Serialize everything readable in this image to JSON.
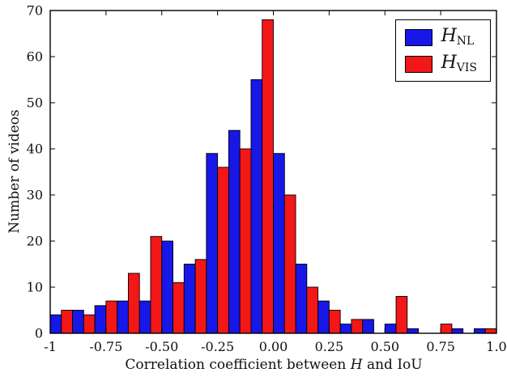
{
  "figure": {
    "background": "#ffffff",
    "ylabel": "Number of videos",
    "xlabel": {
      "prefix": "Correlation coefficient between ",
      "var": "H",
      "suffix": " and IoU"
    },
    "legend": [
      {
        "main": "H",
        "sub": "NL",
        "color": "#1717e8"
      },
      {
        "main": "H",
        "sub": "VIS",
        "color": "#f31717"
      }
    ]
  },
  "chart_data": {
    "type": "bar",
    "title": "",
    "xlabel": "Correlation coefficient between H and IoU",
    "ylabel": "Number of videos",
    "xlim": [
      -1,
      1
    ],
    "ylim": [
      0,
      70
    ],
    "grid": false,
    "legend_position": "top-right",
    "bin_width": 0.1,
    "bin_centers": [
      -0.95,
      -0.85,
      -0.75,
      -0.65,
      -0.55,
      -0.45,
      -0.35,
      -0.25,
      -0.15,
      -0.05,
      0.05,
      0.15,
      0.25,
      0.35,
      0.45,
      0.55,
      0.65,
      0.75,
      0.85,
      0.95
    ],
    "series": [
      {
        "name": "H_NL",
        "color": "#1717e8",
        "values": [
          4,
          5,
          6,
          7,
          7,
          20,
          15,
          39,
          44,
          55,
          39,
          15,
          7,
          2,
          3,
          2,
          1,
          0,
          1,
          1
        ]
      },
      {
        "name": "H_VIS",
        "color": "#f31717",
        "values": [
          5,
          4,
          7,
          13,
          21,
          11,
          16,
          36,
          40,
          68,
          30,
          10,
          5,
          3,
          0,
          8,
          0,
          2,
          0,
          1
        ]
      }
    ],
    "x_tick_values": [
      -1,
      -0.75,
      -0.5,
      -0.25,
      0,
      0.25,
      0.5,
      0.75,
      1
    ],
    "x_tick_labels": [
      "-1",
      "-0.75",
      "-0.50",
      "-0.25",
      "0.00",
      "0.25",
      "0.50",
      "0.75",
      "1.0"
    ],
    "y_tick_values": [
      0,
      10,
      20,
      30,
      40,
      50,
      60,
      70
    ],
    "y_tick_labels": [
      "0",
      "10",
      "20",
      "30",
      "40",
      "50",
      "60",
      "70"
    ]
  }
}
